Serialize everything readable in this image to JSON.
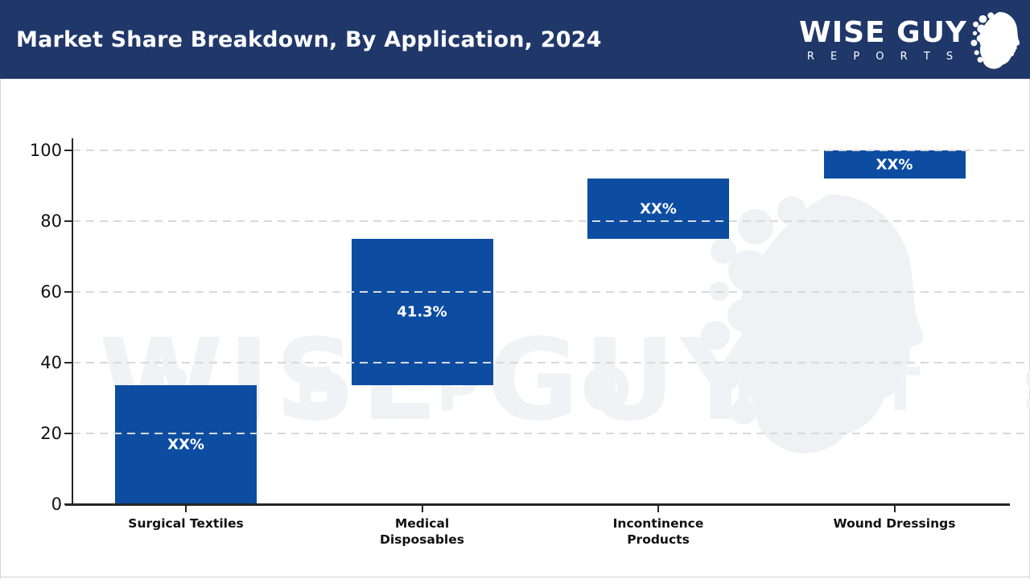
{
  "header": {
    "title": "Market Share Breakdown, By Application, 2024",
    "logo": {
      "name": "WISE GUY",
      "sub": "R E P O R T S"
    }
  },
  "watermark": {
    "name": "WISE GUY",
    "sub": "R E P O R T S"
  },
  "chart_data": {
    "type": "bar",
    "subtype": "waterfall",
    "title": "Market Share Breakdown, By Application, 2024",
    "categories": [
      "Surgical Textiles",
      "Medical\nDisposables",
      "Incontinence\nProducts",
      "Wound Dressings"
    ],
    "segments": [
      {
        "category": "Surgical Textiles",
        "start": 0,
        "end": 33.7,
        "label": "XX%"
      },
      {
        "category": "Medical Disposables",
        "start": 33.7,
        "end": 75,
        "label": "41.3%"
      },
      {
        "category": "Incontinence Products",
        "start": 75,
        "end": 92,
        "label": "XX%"
      },
      {
        "category": "Wound Dressings",
        "start": 92,
        "end": 100,
        "label": "XX%"
      }
    ],
    "y_ticks": [
      0,
      20,
      40,
      60,
      80,
      100
    ],
    "ylim": [
      0,
      104
    ],
    "xlabel": "",
    "ylabel": "",
    "grid": "horizontal-dashed",
    "legend": "none",
    "bar_color": "#0c4da2",
    "bar_label_color": "#ffffff"
  },
  "colors": {
    "header_bg": "#20376a",
    "bar": "#0c4da2",
    "grid": "#d9d9d9",
    "axis": "#262626",
    "watermark": "#f1f2f5"
  }
}
